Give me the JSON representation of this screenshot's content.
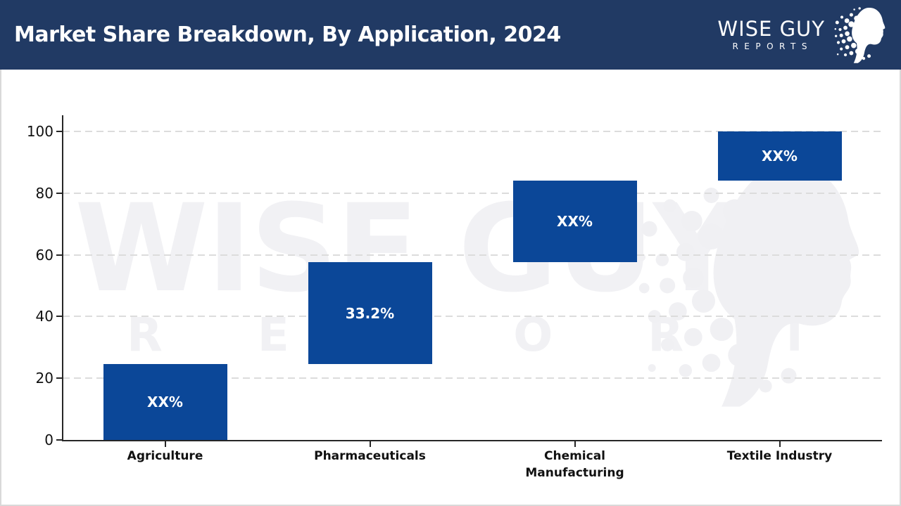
{
  "header": {
    "logo": {
      "line1": "WISE GUY",
      "line2": "REPORTS",
      "icon": "face-profile-dots-icon"
    }
  },
  "watermark": {
    "line1": "WISE GUY",
    "line2": "R E P O R T S",
    "icon": "face-profile-dots-icon"
  },
  "colors": {
    "header_bg": "#213a64",
    "bar": "#0b4798",
    "axis": "#262626",
    "grid": "#dcdcdc",
    "bar_label": "#ffffff",
    "watermark": "#f1f1f4"
  },
  "chart_data": {
    "type": "bar",
    "subtype": "floating-waterfall",
    "title": "Market Share Breakdown, By Application, 2024",
    "xlabel": "",
    "ylabel": "",
    "ylim": [
      0,
      100
    ],
    "yticks": [
      0,
      20,
      40,
      60,
      80,
      100
    ],
    "grid": "horizontal-dashed",
    "legend": "none",
    "categories": [
      "Agriculture",
      "Pharmaceuticals",
      "Chemical\nManufacturing",
      "Textile Industry"
    ],
    "segments": [
      {
        "category": "Agriculture",
        "start": 0,
        "end": 24.5,
        "value": 24.5,
        "label": "XX%"
      },
      {
        "category": "Pharmaceuticals",
        "start": 24.5,
        "end": 57.7,
        "value": 33.2,
        "label": "33.2%"
      },
      {
        "category": "Chemical\nManufacturing",
        "start": 57.7,
        "end": 84.0,
        "value": 26.3,
        "label": "XX%"
      },
      {
        "category": "Textile Industry",
        "start": 84.0,
        "end": 100,
        "value": 16.0,
        "label": "XX%"
      }
    ]
  }
}
